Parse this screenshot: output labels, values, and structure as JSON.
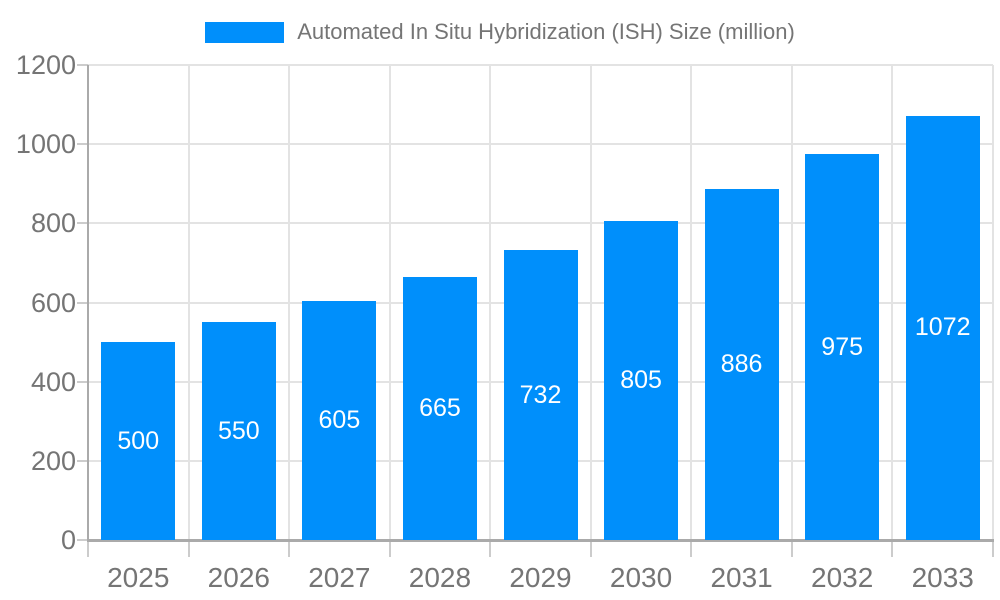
{
  "legend": {
    "label": "Automated In Situ Hybridization (ISH) Size (million)"
  },
  "chart_data": {
    "type": "bar",
    "title": "Automated In Situ Hybridization (ISH) Size (million)",
    "categories": [
      "2025",
      "2026",
      "2027",
      "2028",
      "2029",
      "2030",
      "2031",
      "2032",
      "2033"
    ],
    "values": [
      500,
      550,
      605,
      665,
      732,
      805,
      886,
      975,
      1072
    ],
    "xlabel": "",
    "ylabel": "",
    "ylim": [
      0,
      1200
    ],
    "yticks": [
      0,
      200,
      400,
      600,
      800,
      1000,
      1200
    ],
    "grid": true,
    "legend_position": "top",
    "bar_value_labels_inside": true
  },
  "colors": {
    "bar": "#008FFB",
    "bar_label": "#FFFFFF",
    "axis_text": "#757575",
    "gridline": "#E3E3E3",
    "axis_line": "#AAAAAA",
    "tick": "#CCCCCC",
    "background": "#FFFFFF"
  }
}
